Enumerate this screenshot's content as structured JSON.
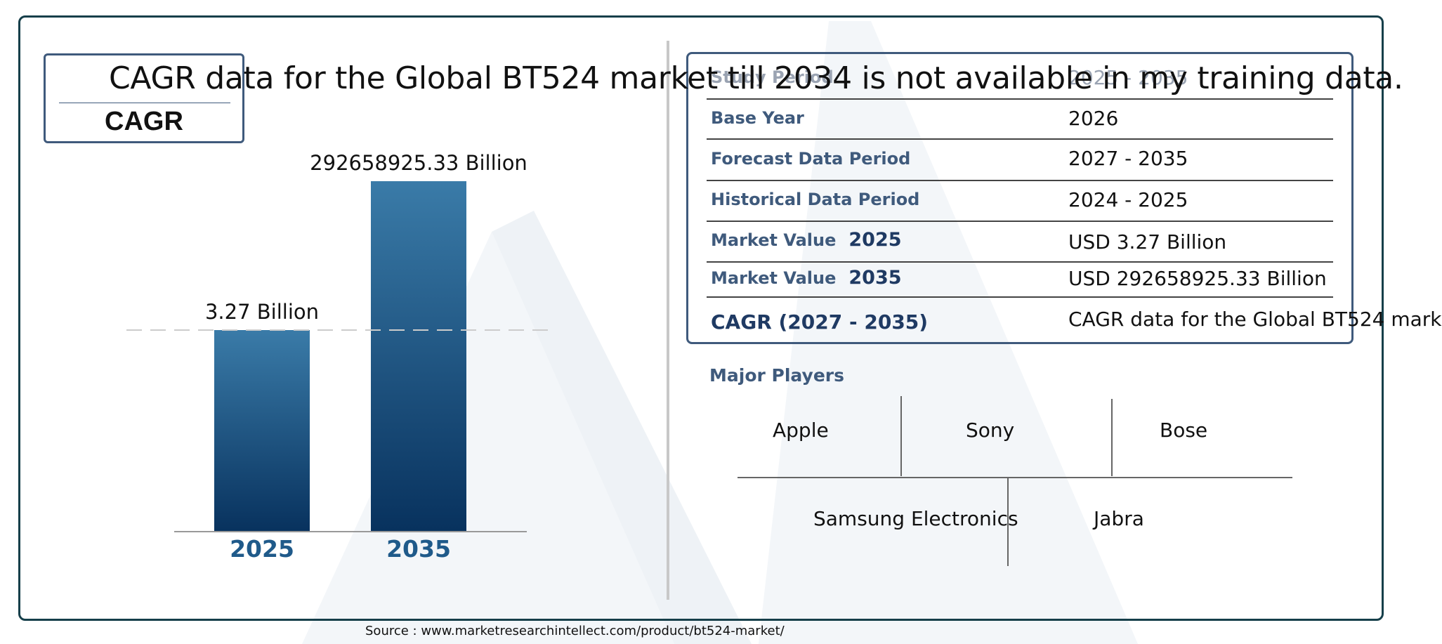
{
  "headline": "CAGR data for the Global BT524 market till 2034 is not available in my training data.",
  "cagr_box_label": "CAGR",
  "chart_data": {
    "type": "bar",
    "categories": [
      "2025",
      "2035"
    ],
    "values": [
      3.27,
      292658925.33
    ],
    "data_labels": [
      "3.27 Billion",
      "292658925.33 Billion"
    ],
    "title": "",
    "xlabel": "",
    "ylabel": "",
    "note": "bars are not drawn to scale in the original",
    "colors": {
      "bar_top": "#3a7ba8",
      "bar_bottom": "#08325e",
      "tick_label": "#1f5a8a",
      "dashed_line": "#cccccc"
    }
  },
  "info_table": {
    "rows": [
      {
        "label": "Study Period",
        "year": "",
        "value": "2025 - 2035"
      },
      {
        "label": "Base Year",
        "year": "",
        "value": "2026"
      },
      {
        "label": "Forecast Data Period",
        "year": "",
        "value": "2027 - 2035"
      },
      {
        "label": "Historical Data Period",
        "year": "",
        "value": "2024 - 2025"
      },
      {
        "label": "Market Value",
        "year": "2025",
        "value": "USD 3.27 Billion"
      },
      {
        "label": "Market Value",
        "year": "2035",
        "value": "USD 292658925.33 Billion"
      },
      {
        "label": "CAGR (2027 - 2035)",
        "year": "",
        "value": "CAGR data for the Global BT524 mark"
      }
    ]
  },
  "major_players": {
    "title": "Major Players",
    "names": [
      "Apple",
      "Sony",
      "Bose",
      "Samsung Electronics",
      "Jabra"
    ]
  },
  "source": "Source : www.marketresearchintellect.com/product/bt524-market/",
  "colors": {
    "frame": "#163f4a",
    "accent": "#3f5a7c",
    "label_dark": "#1f3a63"
  }
}
